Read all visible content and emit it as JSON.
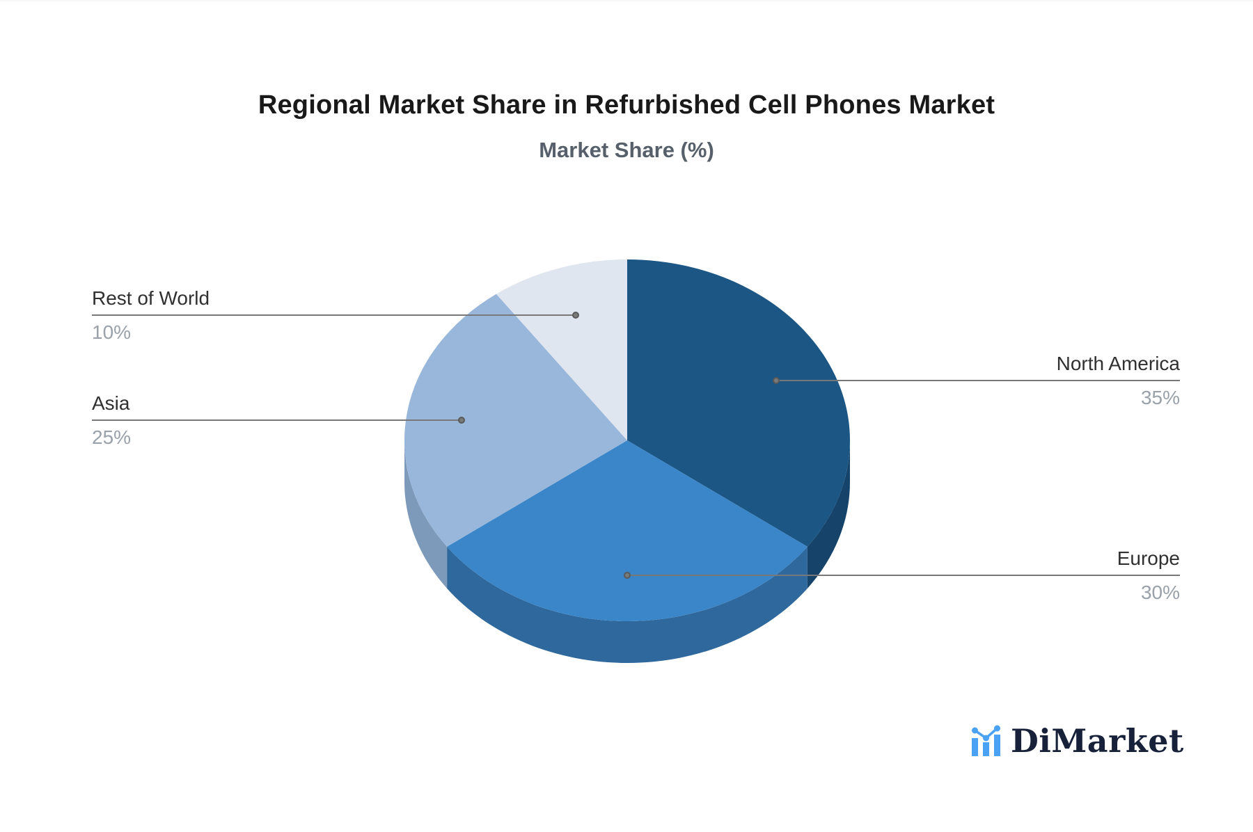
{
  "header": {
    "title": "Regional Market Share in Refurbished Cell Phones Market",
    "subtitle": "Market Share (%)"
  },
  "chart_data": {
    "type": "pie",
    "title": "Regional Market Share in Refurbished Cell Phones Market",
    "subtitle": "Market Share (%)",
    "unit": "%",
    "style": "3d-pie",
    "direction": "clockwise",
    "start_angle_deg": 0,
    "legend_position": "connector-labels",
    "categories": [
      "North America",
      "Europe",
      "Asia",
      "Rest of World"
    ],
    "values": [
      35,
      30,
      25,
      10
    ],
    "slices": [
      {
        "label": "North America",
        "value": 35,
        "pct_label": "35%",
        "color": "#1b5685",
        "side_color": "#154369"
      },
      {
        "label": "Europe",
        "value": 30,
        "pct_label": "30%",
        "color": "#3b86c8",
        "side_color": "#2e689d"
      },
      {
        "label": "Asia",
        "value": 25,
        "pct_label": "25%",
        "color": "#98b7db",
        "side_color": "#7e9aba"
      },
      {
        "label": "Rest of World",
        "value": 10,
        "pct_label": "10%",
        "color": "#e0e6ef",
        "side_color": "#c2cdd9"
      }
    ],
    "connector_color": "#787878",
    "label_color": "#303030",
    "value_color": "#9aa1a9"
  },
  "brand": {
    "name": "DiMarket",
    "icon": "bar-chart-logo-icon",
    "text_color": "#17223a",
    "icon_color": "#4aa2f5"
  }
}
